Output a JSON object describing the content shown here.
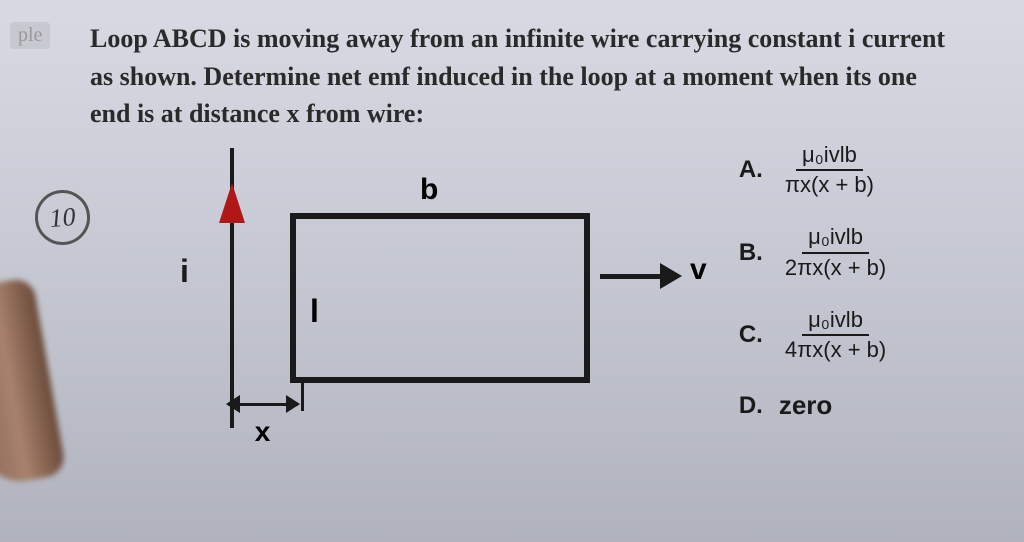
{
  "question": {
    "prefix": "ple",
    "number": "10",
    "text": "Loop ABCD is moving away from an infinite wire carrying constant i current as shown. Determine net emf induced in the loop at a moment when its one end is at distance x from wire:"
  },
  "diagram": {
    "current_label": "i",
    "width_label": "b",
    "height_label": "l",
    "velocity_label": "v",
    "distance_label": "x",
    "colors": {
      "line": "#1a1a1a",
      "arrow_current": "#b01818"
    }
  },
  "options": {
    "A": {
      "letter": "A.",
      "num": "μ₀ivlb",
      "den": "πx(x + b)"
    },
    "B": {
      "letter": "B.",
      "num": "μ₀ivlb",
      "den": "2πx(x + b)"
    },
    "C": {
      "letter": "C.",
      "num": "μ₀ivlb",
      "den": "4πx(x + b)"
    },
    "D": {
      "letter": "D.",
      "text": "zero"
    }
  }
}
